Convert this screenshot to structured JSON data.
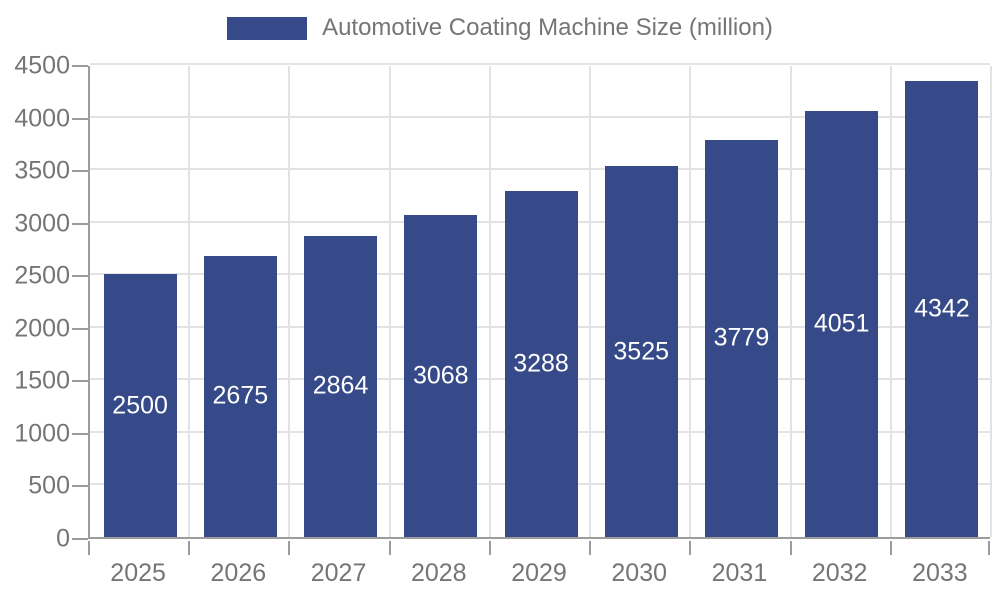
{
  "chart_data": {
    "type": "bar",
    "title": "Automotive Coating Machine Size (million)",
    "categories": [
      "2025",
      "2026",
      "2027",
      "2028",
      "2029",
      "2030",
      "2031",
      "2032",
      "2033"
    ],
    "series": [
      {
        "name": "Automotive Coating Machine Size (million)",
        "values": [
          2500,
          2675,
          2864,
          3068,
          3288,
          3525,
          3779,
          4051,
          4342
        ]
      }
    ],
    "xlabel": "",
    "ylabel": "",
    "ylim": [
      0,
      4500
    ],
    "y_ticks": [
      0,
      500,
      1000,
      1500,
      2000,
      2500,
      3000,
      3500,
      4000,
      4500
    ],
    "grid": true,
    "legend_position": "top",
    "bar_labels_inside": true,
    "colors": {
      "bar": "#364a89",
      "bar_label_text": "#ffffff",
      "grid_line": "#e3e3e3",
      "axis_line": "#9c9c9c",
      "tick_text": "#757575",
      "legend_text": "#757575",
      "background": "#ffffff"
    }
  }
}
